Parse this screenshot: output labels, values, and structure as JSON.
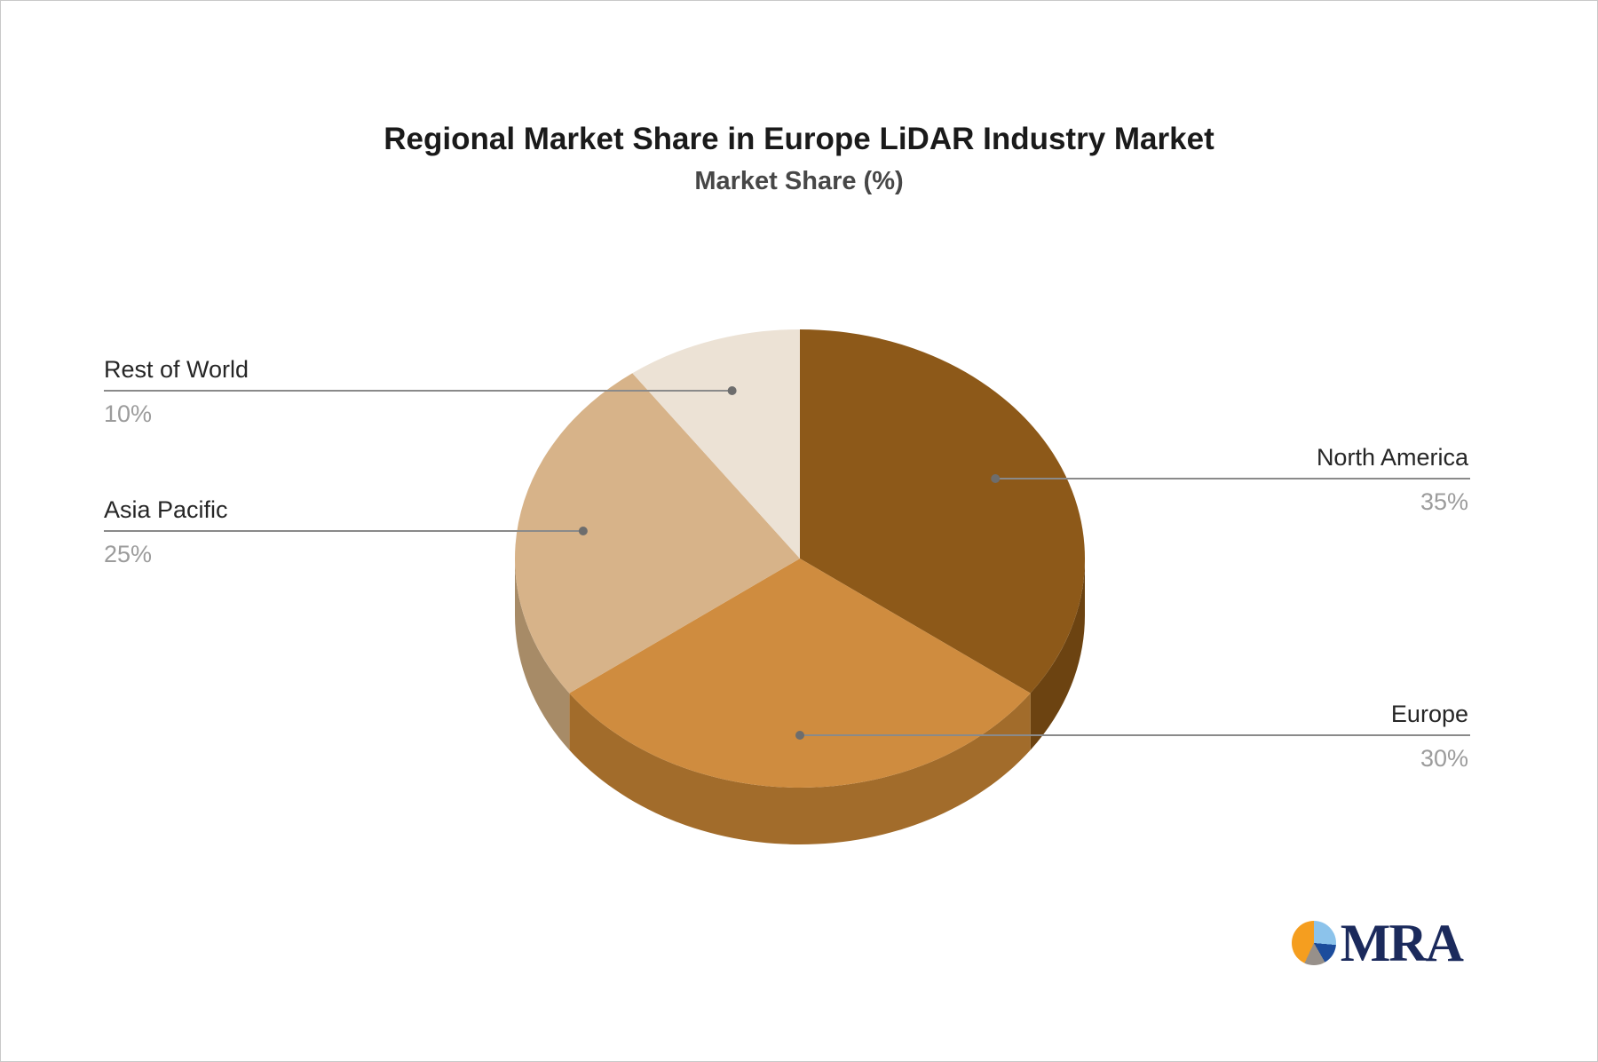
{
  "header": {
    "title": "Regional Market Share in Europe LiDAR Industry Market",
    "subtitle": "Market Share (%)"
  },
  "chart_data": {
    "type": "pie",
    "style": "3d",
    "title": "Regional Market Share in Europe LiDAR Industry Market",
    "subtitle": "Market Share (%)",
    "unit": "%",
    "start_angle_deg": 0,
    "direction": "clockwise",
    "legend": "none",
    "categories": [
      "North America",
      "Europe",
      "Asia Pacific",
      "Rest of World"
    ],
    "values": [
      35,
      30,
      25,
      10
    ],
    "slices": [
      {
        "label": "North America",
        "value": 35,
        "display": "35%",
        "color": "#8D5919",
        "side_color": "#6C4311",
        "label_side": "right"
      },
      {
        "label": "Europe",
        "value": 30,
        "display": "30%",
        "color": "#CF8C3F",
        "side_color": "#A26C2B",
        "label_side": "right"
      },
      {
        "label": "Asia Pacific",
        "value": 25,
        "display": "25%",
        "color": "#D7B389",
        "side_color": "#A78B67",
        "label_side": "left"
      },
      {
        "label": "Rest of World",
        "value": 10,
        "display": "10%",
        "color": "#ECE2D5",
        "side_color": "#B9AFA2",
        "label_side": "left"
      }
    ],
    "colors": {
      "label_text": "#262626",
      "percent_text": "#9C9C9C",
      "connector_line": "#8A8A8A",
      "connector_dot": "#6D6D6D",
      "title_text": "#1A1A1A",
      "subtitle_text": "#474747"
    }
  },
  "logo": {
    "text": "MRA",
    "text_color": "#1B2A5C",
    "icon_colors": [
      "#8CC3EB",
      "#1C4C9C",
      "#97908A",
      "#F59E1F"
    ],
    "icon_angles_deg": [
      0,
      95,
      150,
      205,
      360
    ]
  }
}
